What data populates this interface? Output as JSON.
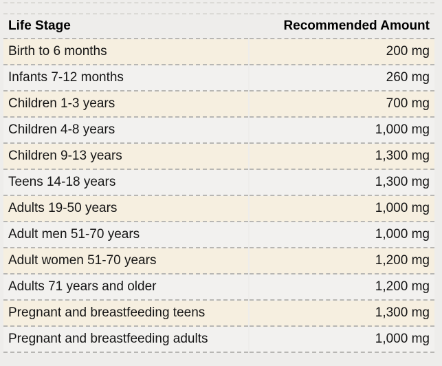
{
  "colors": {
    "page_bg": "#eeedeb",
    "stripe_cream": "#f6efe0",
    "stripe_plain": "#f2f1ef",
    "dash": "#b7b6b3",
    "dash_faint": "#dbdad6",
    "text": "#151515"
  },
  "table": {
    "headers": {
      "life_stage": "Life Stage",
      "amount": "Recommended Amount"
    },
    "rows": [
      {
        "life_stage": "Birth to 6 months",
        "amount": "200 mg"
      },
      {
        "life_stage": "Infants 7-12 months",
        "amount": "260 mg"
      },
      {
        "life_stage": "Children 1-3 years",
        "amount": "700 mg"
      },
      {
        "life_stage": "Children 4-8 years",
        "amount": "1,000 mg"
      },
      {
        "life_stage": "Children 9-13 years",
        "amount": "1,300 mg"
      },
      {
        "life_stage": "Teens 14-18 years",
        "amount": "1,300 mg"
      },
      {
        "life_stage": "Adults 19-50 years",
        "amount": "1,000 mg"
      },
      {
        "life_stage": "Adult men 51-70 years",
        "amount": "1,000 mg"
      },
      {
        "life_stage": "Adult women 51-70 years",
        "amount": "1,200 mg"
      },
      {
        "life_stage": "Adults 71 years and older",
        "amount": "1,200 mg"
      },
      {
        "life_stage": "Pregnant and breastfeeding teens",
        "amount": "1,300 mg"
      },
      {
        "life_stage": "Pregnant and breastfeeding adults",
        "amount": "1,000 mg"
      }
    ]
  }
}
